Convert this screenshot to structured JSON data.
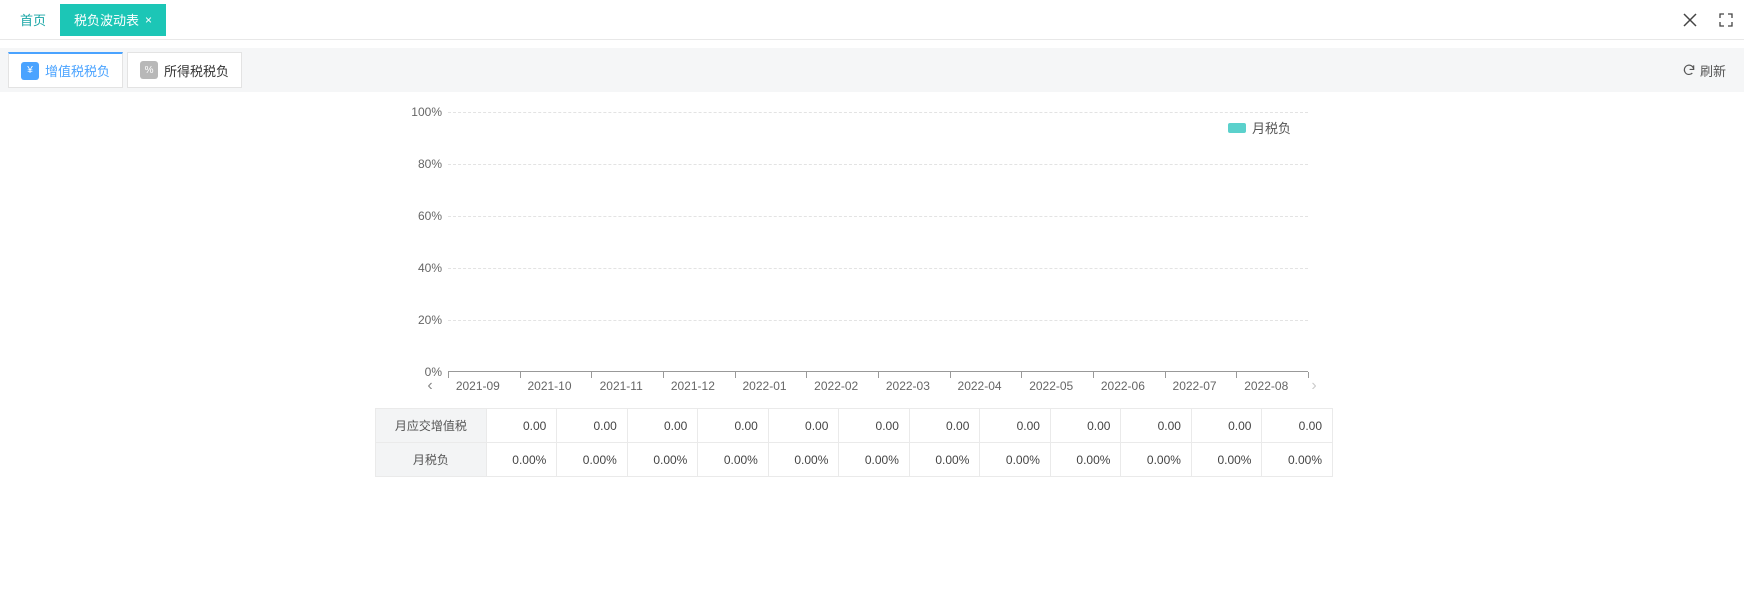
{
  "tabs": {
    "home": "首页",
    "active": "税负波动表"
  },
  "subtabs": {
    "vat": "增值税税负",
    "income": "所得税税负"
  },
  "refresh_label": "刷新",
  "chart": {
    "type": "bar",
    "legend_label": "月税负",
    "legend_color": "#5bd1cc",
    "y_ticks": [
      "0%",
      "20%",
      "40%",
      "60%",
      "80%",
      "100%"
    ],
    "ylim": [
      0,
      100
    ],
    "grid_color": "#e3e3e3",
    "axis_color": "#999999",
    "x_labels": [
      "2021-09",
      "2021-10",
      "2021-11",
      "2021-12",
      "2022-01",
      "2022-02",
      "2022-03",
      "2022-04",
      "2022-05",
      "2022-06",
      "2022-07",
      "2022-08"
    ],
    "values": [
      0,
      0,
      0,
      0,
      0,
      0,
      0,
      0,
      0,
      0,
      0,
      0
    ]
  },
  "table": {
    "row1_label": "月应交增值税",
    "row2_label": "月税负",
    "row1_values": [
      "0.00",
      "0.00",
      "0.00",
      "0.00",
      "0.00",
      "0.00",
      "0.00",
      "0.00",
      "0.00",
      "0.00",
      "0.00",
      "0.00"
    ],
    "row2_values": [
      "0.00%",
      "0.00%",
      "0.00%",
      "0.00%",
      "0.00%",
      "0.00%",
      "0.00%",
      "0.00%",
      "0.00%",
      "0.00%",
      "0.00%",
      "0.00%"
    ]
  }
}
